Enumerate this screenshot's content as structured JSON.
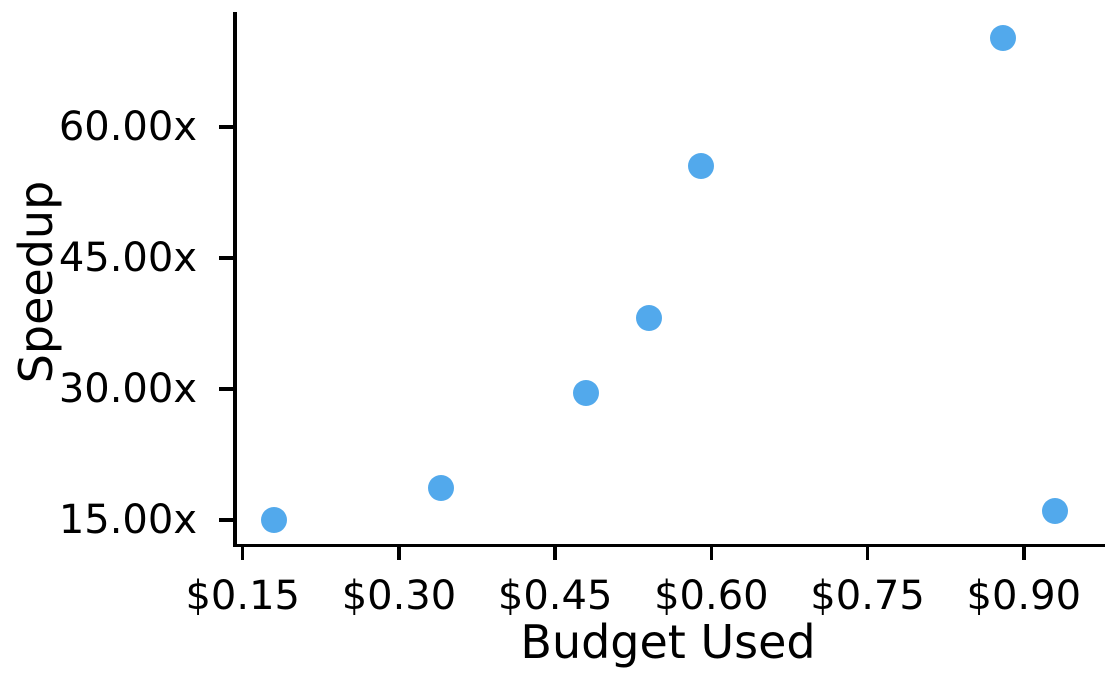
{
  "chart_data": {
    "type": "scatter",
    "title": "",
    "xlabel": "Budget Used",
    "ylabel": "Speedup",
    "x_ticks": {
      "values": [
        0.15,
        0.3,
        0.45,
        0.6,
        0.75,
        0.9
      ],
      "labels": [
        "$0.15",
        "$0.30",
        "$0.45",
        "$0.60",
        "$0.75",
        "$0.90"
      ]
    },
    "y_ticks": {
      "values": [
        15,
        30,
        45,
        60
      ],
      "labels": [
        "15.00x",
        "30.00x",
        "45.00x",
        "60.00x"
      ]
    },
    "xlim": [
      0.144,
      0.978
    ],
    "ylim": [
      12.3,
      73.2
    ],
    "points": [
      {
        "x": 0.18,
        "y": 15.0
      },
      {
        "x": 0.34,
        "y": 18.7
      },
      {
        "x": 0.48,
        "y": 29.6
      },
      {
        "x": 0.54,
        "y": 38.1
      },
      {
        "x": 0.59,
        "y": 55.5
      },
      {
        "x": 0.88,
        "y": 70.2
      },
      {
        "x": 0.93,
        "y": 16.0
      }
    ],
    "marker_color": "#52A9EC",
    "marker_diameter_px": 26,
    "axis_color": "#000000",
    "grid": false,
    "legend": "none"
  }
}
